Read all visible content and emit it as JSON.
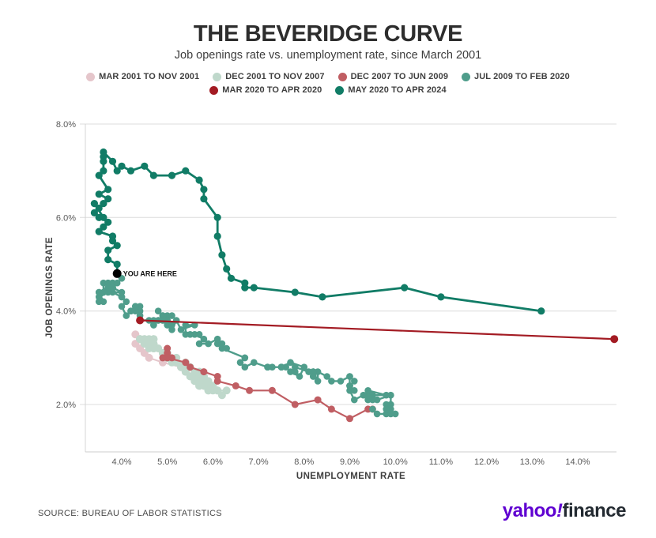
{
  "header": {
    "title": "THE BEVERIDGE CURVE",
    "subtitle": "Job openings rate vs. unemployment rate, since March 2001"
  },
  "footer": {
    "source": "SOURCE: BUREAU OF LABOR STATISTICS",
    "logo_yahoo": "yahoo",
    "logo_bang": "!",
    "logo_finance": "finance"
  },
  "palette": {
    "title_color": "#2d2d2d",
    "subtitle_color": "#3d3d3d",
    "tick_color": "#595959",
    "axis_title_color": "#3f3f3f",
    "grid_color": "#dcdcdc",
    "axis_line_color": "#cccccc",
    "source_color": "#4a4a4a",
    "yahoo_purple": "#5f01d1",
    "finance_dark": "#232a31"
  },
  "chart_data": {
    "type": "scatter",
    "title": "THE BEVERIDGE CURVE",
    "subtitle": "Job openings rate vs. unemployment rate, since March 2001",
    "xlabel": "UNEMPLOYMENT RATE",
    "ylabel": "JOB OPENINGS RATE",
    "xlim": [
      3.2,
      14.9
    ],
    "ylim": [
      1.0,
      8.0
    ],
    "grid": "horizontal",
    "legend_position": "top-center",
    "xticks": [
      {
        "value": 4,
        "label": "4.0%"
      },
      {
        "value": 5,
        "label": "5.0%"
      },
      {
        "value": 6,
        "label": "6.0%"
      },
      {
        "value": 7,
        "label": "7.0%"
      },
      {
        "value": 8,
        "label": "8.0%"
      },
      {
        "value": 9,
        "label": "9.0%"
      },
      {
        "value": 10,
        "label": "10.0%"
      },
      {
        "value": 11,
        "label": "11.0%"
      },
      {
        "value": 12,
        "label": "12.0%"
      },
      {
        "value": 13,
        "label": "13.0%"
      },
      {
        "value": 14,
        "label": "14.0%"
      }
    ],
    "yticks": [
      {
        "value": 2,
        "label": "2.0%"
      },
      {
        "value": 4,
        "label": "4.0%"
      },
      {
        "value": 6,
        "label": "6.0%"
      },
      {
        "value": 8,
        "label": "8.0%"
      }
    ],
    "series": [
      {
        "name": "MAR 2001 TO NOV 2001",
        "color": "#e5c6cb",
        "line_width": 2,
        "marker_radius": 5,
        "points": [
          [
            4.3,
            3.5
          ],
          [
            4.4,
            3.4
          ],
          [
            4.3,
            3.3
          ],
          [
            4.4,
            3.2
          ],
          [
            4.5,
            3.1
          ],
          [
            4.6,
            3.0
          ],
          [
            4.9,
            2.9
          ],
          [
            5.3,
            2.8
          ],
          [
            5.6,
            2.6
          ]
        ]
      },
      {
        "name": "DEC 2001 TO NOV 2007",
        "color": "#bfd8cb",
        "line_width": 2,
        "marker_radius": 5,
        "points": [
          [
            5.7,
            2.7
          ],
          [
            5.7,
            2.7
          ],
          [
            5.7,
            2.6
          ],
          [
            5.7,
            2.6
          ],
          [
            5.9,
            2.5
          ],
          [
            5.8,
            2.6
          ],
          [
            5.8,
            2.5
          ],
          [
            5.8,
            2.6
          ],
          [
            5.7,
            2.5
          ],
          [
            5.7,
            2.5
          ],
          [
            5.7,
            2.4
          ],
          [
            5.9,
            2.4
          ],
          [
            6.0,
            2.4
          ],
          [
            5.8,
            2.4
          ],
          [
            5.9,
            2.3
          ],
          [
            5.9,
            2.3
          ],
          [
            6.0,
            2.3
          ],
          [
            6.1,
            2.3
          ],
          [
            6.3,
            2.3
          ],
          [
            6.2,
            2.2
          ],
          [
            6.1,
            2.3
          ],
          [
            6.1,
            2.3
          ],
          [
            6.0,
            2.4
          ],
          [
            5.8,
            2.4
          ],
          [
            5.7,
            2.4
          ],
          [
            5.7,
            2.5
          ],
          [
            5.6,
            2.5
          ],
          [
            5.8,
            2.6
          ],
          [
            5.6,
            2.6
          ],
          [
            5.6,
            2.6
          ],
          [
            5.6,
            2.7
          ],
          [
            5.5,
            2.6
          ],
          [
            5.4,
            2.7
          ],
          [
            5.4,
            2.7
          ],
          [
            5.5,
            2.8
          ],
          [
            5.4,
            2.8
          ],
          [
            5.4,
            2.8
          ],
          [
            5.3,
            2.8
          ],
          [
            5.4,
            2.9
          ],
          [
            5.2,
            2.9
          ],
          [
            5.2,
            3.0
          ],
          [
            5.1,
            2.9
          ],
          [
            5.0,
            3.0
          ],
          [
            5.0,
            3.0
          ],
          [
            4.9,
            3.1
          ],
          [
            5.0,
            3.1
          ],
          [
            5.0,
            3.0
          ],
          [
            5.0,
            3.1
          ],
          [
            4.9,
            3.1
          ],
          [
            4.7,
            3.2
          ],
          [
            4.8,
            3.2
          ],
          [
            4.7,
            3.2
          ],
          [
            4.7,
            3.3
          ],
          [
            4.6,
            3.2
          ],
          [
            4.6,
            3.3
          ],
          [
            4.7,
            3.3
          ],
          [
            4.7,
            3.4
          ],
          [
            4.5,
            3.3
          ],
          [
            4.4,
            3.4
          ],
          [
            4.5,
            3.3
          ],
          [
            4.4,
            3.4
          ],
          [
            4.6,
            3.4
          ],
          [
            4.5,
            3.4
          ],
          [
            4.4,
            3.4
          ],
          [
            4.5,
            3.4
          ],
          [
            4.4,
            3.4
          ],
          [
            4.6,
            3.3
          ],
          [
            4.7,
            3.4
          ],
          [
            4.6,
            3.3
          ],
          [
            4.7,
            3.3
          ],
          [
            4.7,
            3.2
          ],
          [
            4.7,
            3.2
          ]
        ]
      },
      {
        "name": "DEC 2007 TO JUN 2009",
        "color": "#c05e63",
        "line_width": 2.2,
        "marker_radius": 4.5,
        "points": [
          [
            5.0,
            3.2
          ],
          [
            5.0,
            3.1
          ],
          [
            4.9,
            3.0
          ],
          [
            5.1,
            3.0
          ],
          [
            5.0,
            3.0
          ],
          [
            5.4,
            2.9
          ],
          [
            5.5,
            2.8
          ],
          [
            5.8,
            2.7
          ],
          [
            6.1,
            2.6
          ],
          [
            6.1,
            2.5
          ],
          [
            6.5,
            2.4
          ],
          [
            6.8,
            2.3
          ],
          [
            7.3,
            2.3
          ],
          [
            7.8,
            2.0
          ],
          [
            8.3,
            2.1
          ],
          [
            8.6,
            1.9
          ],
          [
            9.0,
            1.7
          ],
          [
            9.4,
            1.9
          ],
          [
            9.5,
            1.9
          ]
        ]
      },
      {
        "name": "JUL 2009 TO FEB 2020",
        "color": "#4f9d8b",
        "line_width": 2.4,
        "marker_radius": 4.3,
        "points": [
          [
            9.5,
            1.9
          ],
          [
            9.6,
            1.8
          ],
          [
            9.8,
            1.8
          ],
          [
            10.0,
            1.8
          ],
          [
            9.9,
            1.8
          ],
          [
            9.9,
            1.9
          ],
          [
            9.8,
            2.0
          ],
          [
            9.8,
            1.9
          ],
          [
            9.9,
            2.0
          ],
          [
            9.9,
            2.2
          ],
          [
            9.6,
            2.1
          ],
          [
            9.4,
            2.1
          ],
          [
            9.4,
            2.2
          ],
          [
            9.5,
            2.2
          ],
          [
            9.5,
            2.1
          ],
          [
            9.4,
            2.3
          ],
          [
            9.8,
            2.2
          ],
          [
            9.3,
            2.2
          ],
          [
            9.1,
            2.1
          ],
          [
            9.0,
            2.3
          ],
          [
            9.0,
            2.4
          ],
          [
            9.1,
            2.3
          ],
          [
            9.0,
            2.4
          ],
          [
            9.1,
            2.5
          ],
          [
            9.0,
            2.6
          ],
          [
            9.0,
            2.4
          ],
          [
            9.0,
            2.6
          ],
          [
            8.8,
            2.5
          ],
          [
            8.6,
            2.5
          ],
          [
            8.5,
            2.6
          ],
          [
            8.3,
            2.7
          ],
          [
            8.3,
            2.5
          ],
          [
            8.2,
            2.7
          ],
          [
            8.2,
            2.6
          ],
          [
            8.2,
            2.7
          ],
          [
            8.2,
            2.7
          ],
          [
            8.2,
            2.6
          ],
          [
            8.1,
            2.7
          ],
          [
            7.8,
            2.8
          ],
          [
            7.8,
            2.7
          ],
          [
            7.7,
            2.7
          ],
          [
            7.9,
            2.6
          ],
          [
            8.0,
            2.8
          ],
          [
            7.7,
            2.9
          ],
          [
            7.5,
            2.8
          ],
          [
            7.6,
            2.8
          ],
          [
            7.5,
            2.8
          ],
          [
            7.5,
            2.8
          ],
          [
            7.3,
            2.8
          ],
          [
            7.2,
            2.8
          ],
          [
            7.2,
            2.8
          ],
          [
            7.2,
            2.8
          ],
          [
            6.9,
            2.9
          ],
          [
            6.7,
            2.8
          ],
          [
            6.6,
            2.9
          ],
          [
            6.7,
            3.0
          ],
          [
            6.7,
            3.0
          ],
          [
            6.2,
            3.2
          ],
          [
            6.3,
            3.2
          ],
          [
            6.1,
            3.3
          ],
          [
            6.2,
            3.3
          ],
          [
            6.1,
            3.4
          ],
          [
            5.9,
            3.3
          ],
          [
            5.7,
            3.3
          ],
          [
            5.8,
            3.4
          ],
          [
            5.6,
            3.5
          ],
          [
            5.7,
            3.5
          ],
          [
            5.5,
            3.5
          ],
          [
            5.4,
            3.5
          ],
          [
            5.4,
            3.7
          ],
          [
            5.6,
            3.7
          ],
          [
            5.3,
            3.6
          ],
          [
            5.2,
            3.8
          ],
          [
            5.1,
            3.6
          ],
          [
            5.0,
            3.7
          ],
          [
            5.0,
            3.7
          ],
          [
            5.1,
            3.7
          ],
          [
            5.0,
            3.8
          ],
          [
            4.8,
            3.8
          ],
          [
            4.9,
            3.8
          ],
          [
            5.0,
            3.9
          ],
          [
            5.1,
            3.9
          ],
          [
            4.8,
            3.8
          ],
          [
            4.9,
            3.9
          ],
          [
            4.8,
            4.0
          ],
          [
            4.9,
            3.9
          ],
          [
            5.0,
            3.8
          ],
          [
            4.9,
            3.8
          ],
          [
            4.7,
            3.8
          ],
          [
            4.7,
            3.7
          ],
          [
            4.7,
            3.7
          ],
          [
            4.6,
            3.8
          ],
          [
            4.4,
            3.8
          ],
          [
            4.4,
            4.0
          ],
          [
            4.4,
            3.9
          ],
          [
            4.3,
            4.0
          ],
          [
            4.3,
            4.1
          ],
          [
            4.4,
            4.1
          ],
          [
            4.3,
            4.1
          ],
          [
            4.2,
            4.0
          ],
          [
            4.2,
            4.0
          ],
          [
            4.1,
            3.9
          ],
          [
            4.0,
            4.1
          ],
          [
            4.1,
            4.2
          ],
          [
            4.0,
            4.3
          ],
          [
            4.0,
            4.3
          ],
          [
            3.8,
            4.4
          ],
          [
            4.0,
            4.4
          ],
          [
            3.8,
            4.5
          ],
          [
            3.8,
            4.6
          ],
          [
            3.7,
            4.6
          ],
          [
            3.8,
            4.6
          ],
          [
            3.8,
            4.6
          ],
          [
            3.9,
            4.6
          ],
          [
            4.0,
            4.7
          ],
          [
            3.8,
            4.5
          ],
          [
            3.8,
            4.5
          ],
          [
            3.6,
            4.6
          ],
          [
            3.6,
            4.4
          ],
          [
            3.7,
            4.6
          ],
          [
            3.7,
            4.5
          ],
          [
            3.7,
            4.4
          ],
          [
            3.5,
            4.3
          ],
          [
            3.6,
            4.4
          ],
          [
            3.5,
            4.2
          ],
          [
            3.6,
            4.2
          ],
          [
            3.5,
            4.4
          ],
          [
            3.5,
            4.4
          ]
        ]
      },
      {
        "name": "MAR 2020 TO APR 2020",
        "color": "#a31b23",
        "line_width": 2.2,
        "marker_radius": 5,
        "points": [
          [
            4.4,
            3.8
          ],
          [
            14.8,
            3.4
          ]
        ]
      },
      {
        "name": "MAY 2020 TO APR 2024",
        "color": "#117c66",
        "line_width": 2.8,
        "marker_radius": 4.6,
        "points": [
          [
            13.2,
            4.0
          ],
          [
            11.0,
            4.3
          ],
          [
            10.2,
            4.5
          ],
          [
            8.4,
            4.3
          ],
          [
            7.8,
            4.4
          ],
          [
            6.9,
            4.5
          ],
          [
            6.7,
            4.5
          ],
          [
            6.7,
            4.6
          ],
          [
            6.4,
            4.7
          ],
          [
            6.3,
            4.9
          ],
          [
            6.2,
            5.2
          ],
          [
            6.1,
            5.6
          ],
          [
            6.1,
            6.0
          ],
          [
            5.8,
            6.4
          ],
          [
            5.8,
            6.6
          ],
          [
            5.7,
            6.8
          ],
          [
            5.4,
            7.0
          ],
          [
            5.1,
            6.9
          ],
          [
            4.7,
            6.9
          ],
          [
            4.5,
            7.1
          ],
          [
            4.2,
            7.0
          ],
          [
            4.0,
            7.1
          ],
          [
            3.9,
            7.0
          ],
          [
            3.8,
            7.2
          ],
          [
            3.6,
            7.4
          ],
          [
            3.6,
            7.3
          ],
          [
            3.6,
            7.2
          ],
          [
            3.6,
            7.0
          ],
          [
            3.5,
            6.9
          ],
          [
            3.7,
            6.6
          ],
          [
            3.5,
            6.5
          ],
          [
            3.7,
            6.4
          ],
          [
            3.6,
            6.3
          ],
          [
            3.5,
            6.2
          ],
          [
            3.4,
            6.3
          ],
          [
            3.6,
            6.0
          ],
          [
            3.5,
            6.0
          ],
          [
            3.4,
            6.1
          ],
          [
            3.7,
            5.9
          ],
          [
            3.6,
            5.8
          ],
          [
            3.5,
            5.7
          ],
          [
            3.8,
            5.6
          ],
          [
            3.8,
            5.5
          ],
          [
            3.9,
            5.4
          ],
          [
            3.7,
            5.3
          ],
          [
            3.7,
            5.1
          ],
          [
            3.9,
            5.0
          ],
          [
            3.9,
            4.8
          ]
        ]
      }
    ],
    "annotation": {
      "label": "YOU ARE HERE",
      "x": 3.9,
      "y": 4.8,
      "color": "#000000"
    }
  }
}
